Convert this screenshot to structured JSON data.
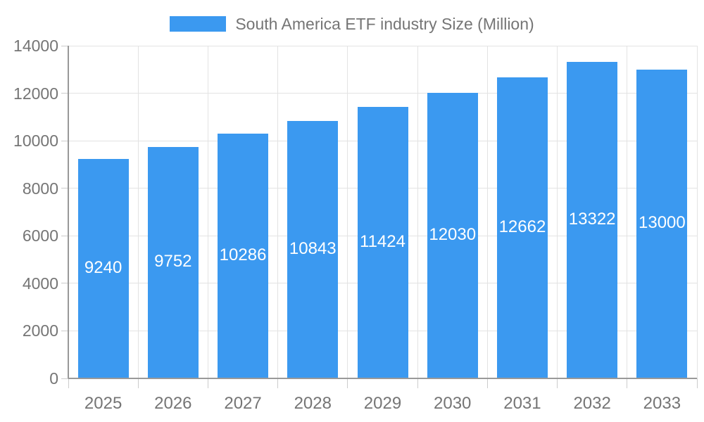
{
  "legend": {
    "label": "South America ETF industry Size (Million)"
  },
  "chart_data": {
    "type": "bar",
    "title": "South America ETF industry Size (Million)",
    "categories": [
      "2025",
      "2026",
      "2027",
      "2028",
      "2029",
      "2030",
      "2031",
      "2032",
      "2033"
    ],
    "series": [
      {
        "name": "South America ETF industry Size (Million)",
        "values": [
          9240,
          9752,
          10286,
          10843,
          11424,
          12030,
          12662,
          13322,
          13000
        ]
      }
    ],
    "xlabel": "",
    "ylabel": "",
    "ylim": [
      0,
      14000
    ],
    "yticks": [
      0,
      2000,
      4000,
      6000,
      8000,
      10000,
      12000,
      14000
    ],
    "grid": true,
    "legend_position": "top",
    "value_label_style": "inside-center-white"
  },
  "colors": {
    "bar": "#3B99F0",
    "axis_line": "#999999",
    "gridline": "#e3e3e3",
    "tick_mark": "#cccccc",
    "tick_text": "#757575",
    "value_label_text": "#ffffff",
    "background": "#ffffff"
  }
}
